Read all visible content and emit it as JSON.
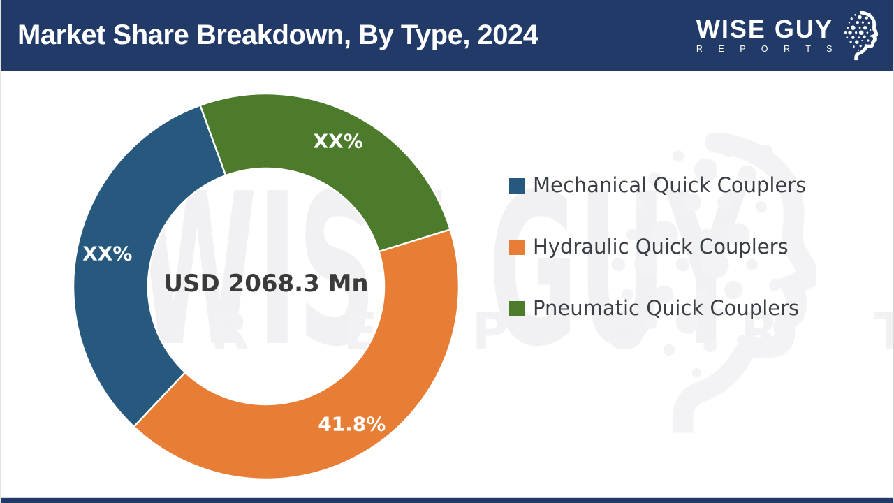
{
  "header": {
    "title": "Market Share Breakdown, By Type, 2024",
    "logo": {
      "name": "WISE GUY",
      "sub": "R E P O R T S",
      "icon": "face-dots-icon"
    }
  },
  "watermark": {
    "wordmark": "WISE GUY",
    "reports": "R E P O R T S"
  },
  "colors": {
    "header_bg": "#213A68",
    "blue": "#27587E",
    "orange": "#E87E35",
    "green": "#4C7B2B",
    "legend_text": "#3A3F46",
    "center_text": "#3A3A3A"
  },
  "chart_data": {
    "type": "pie",
    "style": "donut",
    "title": "Market Share Breakdown, By Type, 2024",
    "center_label": "USD 2068.3 Mn",
    "legend_position": "right",
    "segments": [
      {
        "label": "Mechanical Quick Couplers",
        "display_label": "XX%",
        "value_pct": 32.4,
        "start_angle_deg": 223.3,
        "end_angle_deg": 340.0,
        "color": "#27587E"
      },
      {
        "label": "Hydraulic Quick Couplers",
        "display_label": "41.8%",
        "value_pct": 41.8,
        "start_angle_deg": 72.8,
        "end_angle_deg": 223.3,
        "color": "#E87E35"
      },
      {
        "label": "Pneumatic Quick Couplers",
        "display_label": "XX%",
        "value_pct": 25.8,
        "start_angle_deg": -20.0,
        "end_angle_deg": 72.8,
        "color": "#4C7B2B"
      }
    ]
  },
  "legend": {
    "items": [
      {
        "label": "Mechanical Quick Couplers",
        "color": "#27587E"
      },
      {
        "label": "Hydraulic Quick Couplers",
        "color": "#E87E35"
      },
      {
        "label": "Pneumatic Quick Couplers",
        "color": "#4C7B2B"
      }
    ]
  }
}
